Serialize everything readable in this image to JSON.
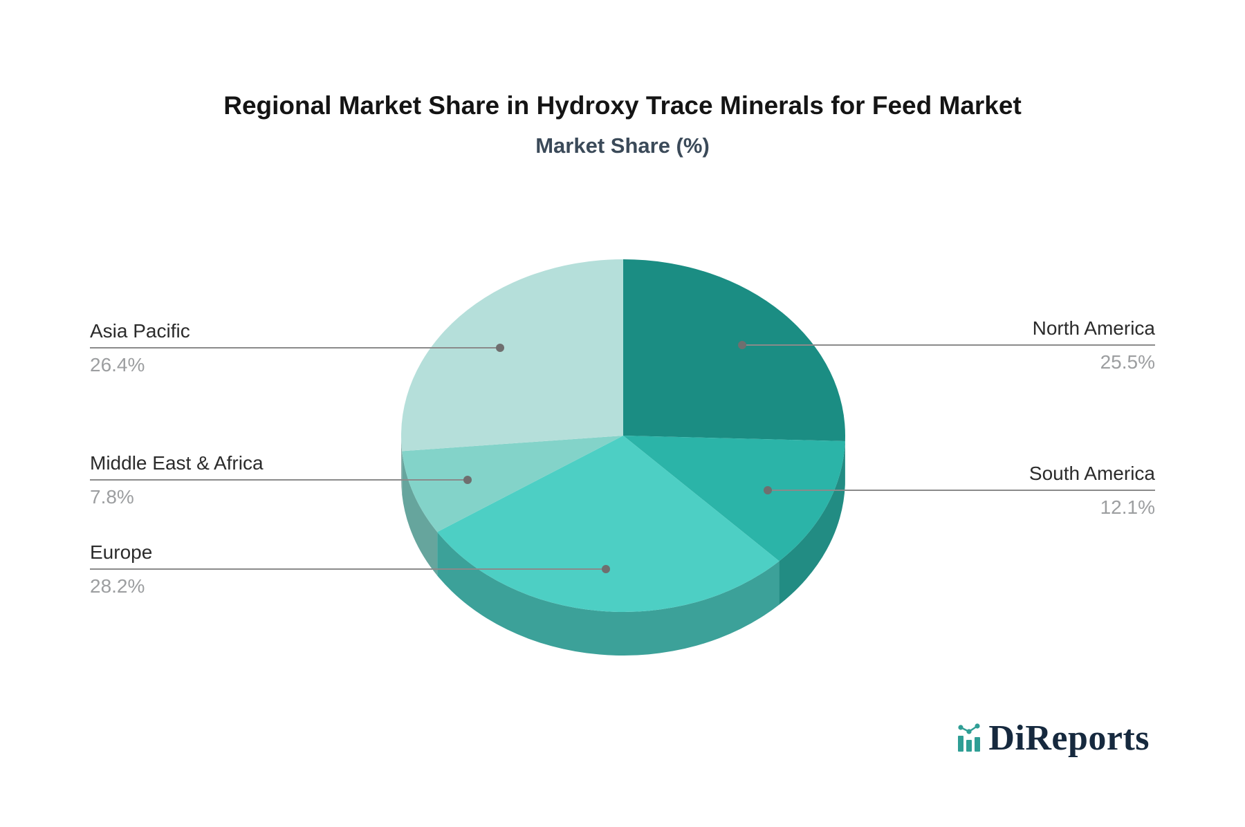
{
  "title": "Regional Market Share in Hydroxy Trace Minerals for Feed Market",
  "subtitle": "Market Share (%)",
  "logo": {
    "text": "DiReports",
    "icon": "mini-bar-line-chart-icon",
    "text_color": "#16293e",
    "accent_color": "#2f9e95"
  },
  "chart_data": {
    "type": "pie",
    "title": "Regional Market Share in Hydroxy Trace Minerals for Feed Market",
    "subtitle": "Market Share (%)",
    "unit": "%",
    "style": "3d-pie",
    "start_angle_deg": 0,
    "direction": "clockwise",
    "slices": [
      {
        "label": "North America",
        "value": 25.5,
        "display": "25.5%",
        "color": "#1b8d83",
        "label_side": "right"
      },
      {
        "label": "South America",
        "value": 12.1,
        "display": "12.1%",
        "color": "#2bb4a8",
        "label_side": "right"
      },
      {
        "label": "Europe",
        "value": 28.2,
        "display": "28.2%",
        "color": "#4dcfc4",
        "label_side": "left"
      },
      {
        "label": "Middle East & Africa",
        "value": 7.8,
        "display": "7.8%",
        "color": "#83d3c9",
        "label_side": "left"
      },
      {
        "label": "Asia Pacific",
        "value": 26.4,
        "display": "26.4%",
        "color": "#b5dfda",
        "label_side": "left"
      }
    ],
    "colors": {
      "leader_line": "#8a8a8a",
      "leader_dot": "#6f6f6f",
      "label_text": "#2b2b2b",
      "value_text": "#9c9ea0",
      "background": "#ffffff"
    },
    "legend": "none",
    "labels_position": "outside-with-leader-lines"
  }
}
